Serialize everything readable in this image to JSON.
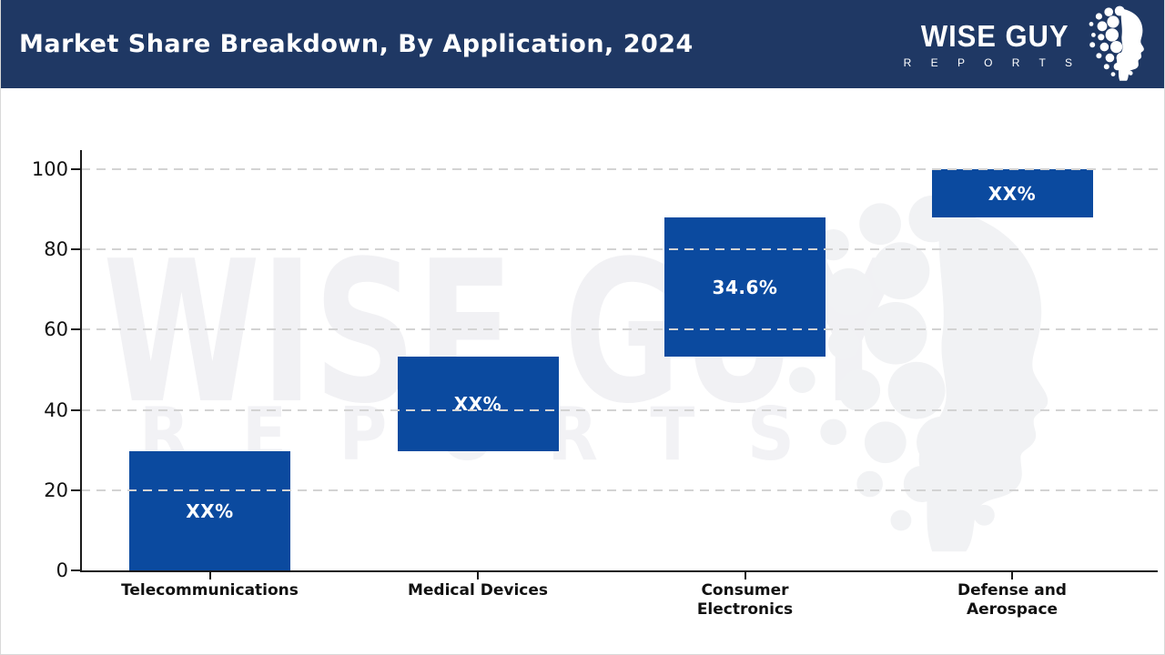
{
  "header": {
    "title": "Market Share Breakdown, By Application, 2024",
    "bg_color": "#1f3864",
    "brand_line1": "WISE GUY",
    "brand_line2": "R E P O R T S"
  },
  "watermark": {
    "line1": "WISE GUY",
    "line2": "R E P O R T S"
  },
  "chart_data": {
    "type": "bar",
    "subtype": "waterfall",
    "title": "Market Share Breakdown, By Application, 2024",
    "categories": [
      "Telecommunications",
      "Medical Devices",
      "Consumer\nElectronics",
      "Defense and\nAerospace"
    ],
    "series": [
      {
        "name": "Market share (%)",
        "segments": [
          {
            "category": "Telecommunications",
            "start": 0,
            "end": 29.7,
            "value": 29.7,
            "label": "XX%"
          },
          {
            "category": "Medical Devices",
            "start": 29.7,
            "end": 53.3,
            "value": 23.6,
            "label": "XX%"
          },
          {
            "category": "Consumer Electronics",
            "start": 53.3,
            "end": 87.9,
            "value": 34.6,
            "label": "34.6%"
          },
          {
            "category": "Defense and Aerospace",
            "start": 87.9,
            "end": 100,
            "value": 12.1,
            "label": "XX%"
          }
        ]
      }
    ],
    "yticks": [
      0,
      20,
      40,
      60,
      80,
      100
    ],
    "ylim": [
      0,
      105
    ],
    "xlabel": "",
    "ylabel": "",
    "grid": "horizontal-dashed",
    "legend": "none",
    "bar_color": "#0b4a9f",
    "bar_label_color": "#ffffff",
    "grid_color": "#d3d3d3",
    "axis_color": "#1a1a1a"
  }
}
